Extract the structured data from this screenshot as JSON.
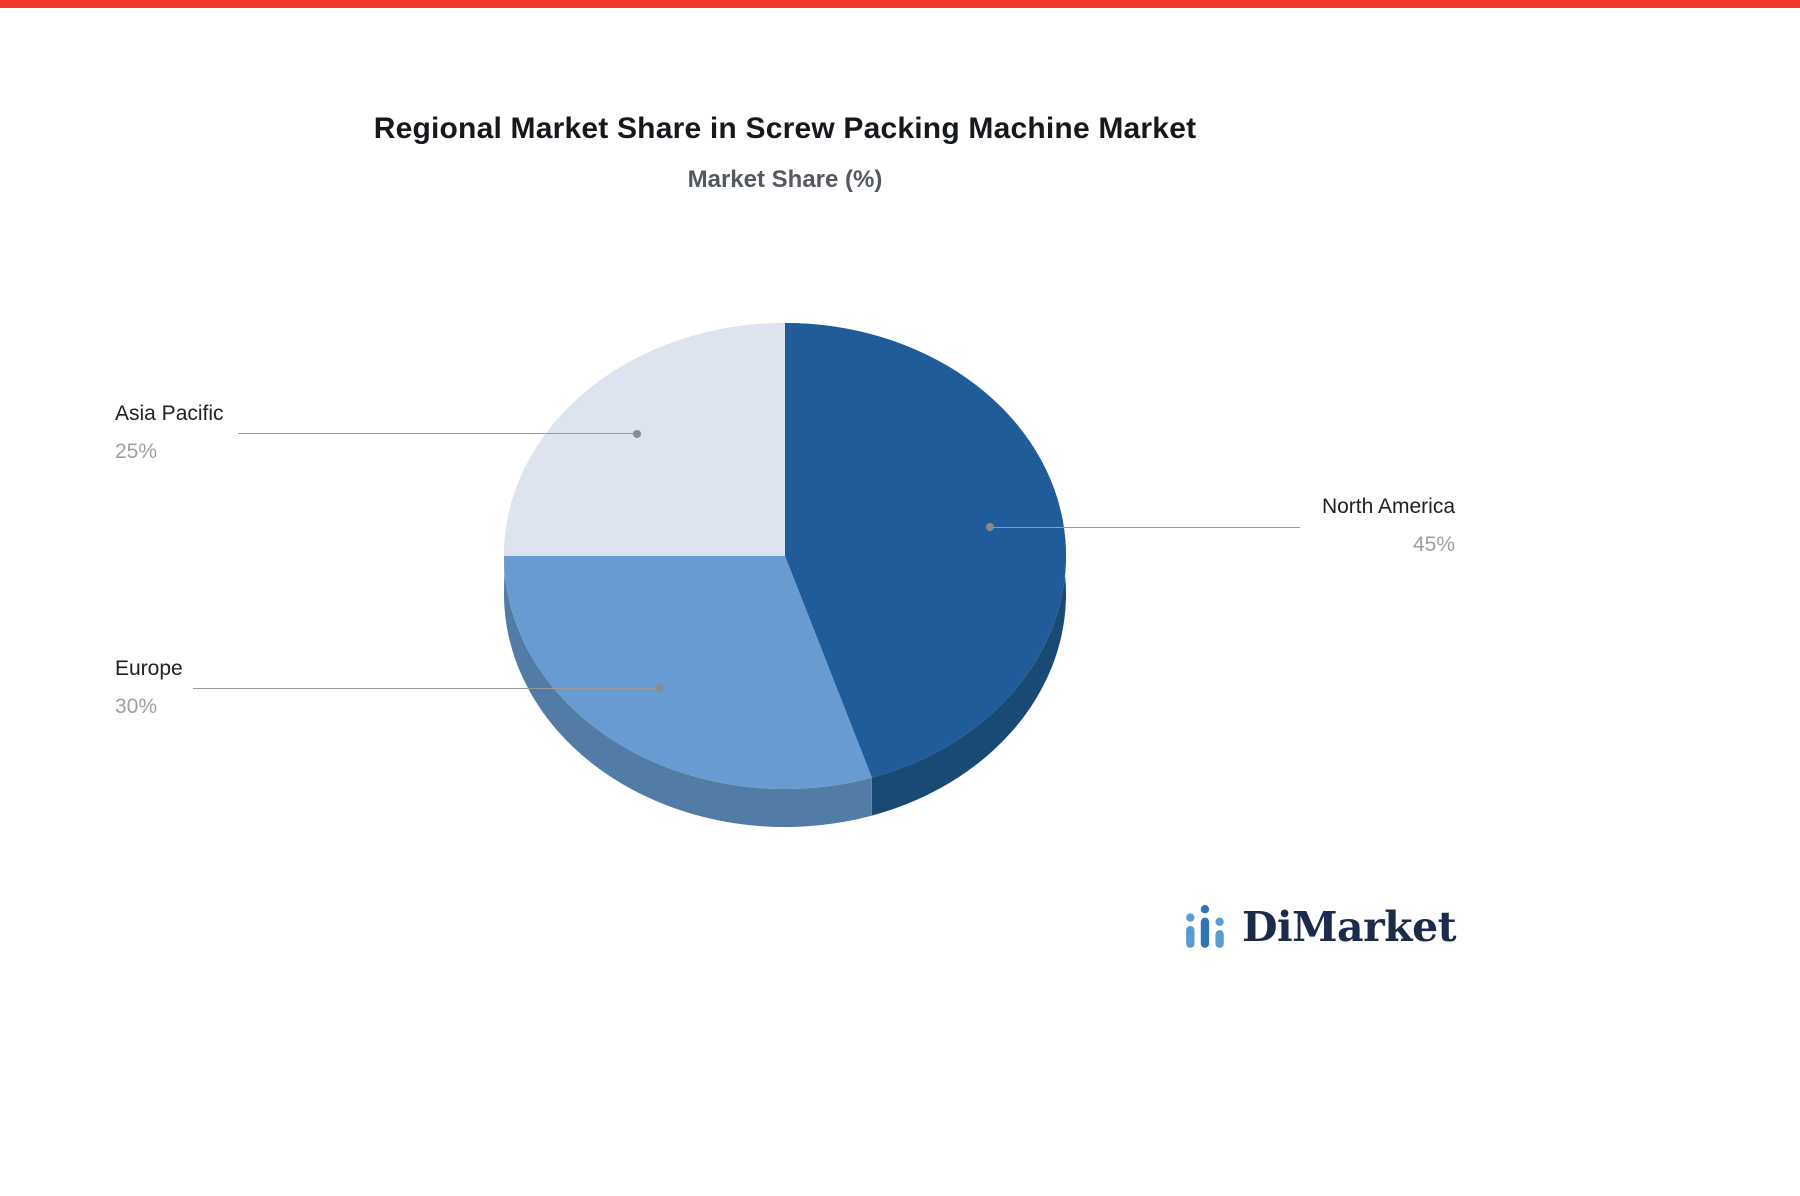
{
  "page": {
    "background": "#ffffff",
    "top_bar_color": "#f13a2c"
  },
  "header": {
    "title": "Regional Market Share in Screw Packing Machine Market",
    "subtitle": "Market Share (%)"
  },
  "chart_data": {
    "type": "pie",
    "title": "Regional Market Share in Screw Packing Machine Market",
    "subtitle": "Market Share (%)",
    "unit": "%",
    "effect": "3d",
    "start_angle_deg": 0,
    "direction": "clockwise",
    "legend_position": "callout-labels",
    "categories": [
      "North America",
      "Europe",
      "Asia Pacific"
    ],
    "values": [
      45,
      30,
      25
    ],
    "slices": [
      {
        "label": "North America",
        "value": 45,
        "pct_text": "45%",
        "color": "#1f5c99",
        "depth_color": "#184a75"
      },
      {
        "label": "Europe",
        "value": 30,
        "pct_text": "30%",
        "color": "#689bd2",
        "depth_color": "#527ca6"
      },
      {
        "label": "Asia Pacific",
        "value": 25,
        "pct_text": "25%",
        "color": "#dee4ef",
        "depth_color": "#a9b3c6"
      }
    ]
  },
  "branding": {
    "logo_text": "DiMarket",
    "logo_icon": "bar-chart-logo-icon"
  }
}
